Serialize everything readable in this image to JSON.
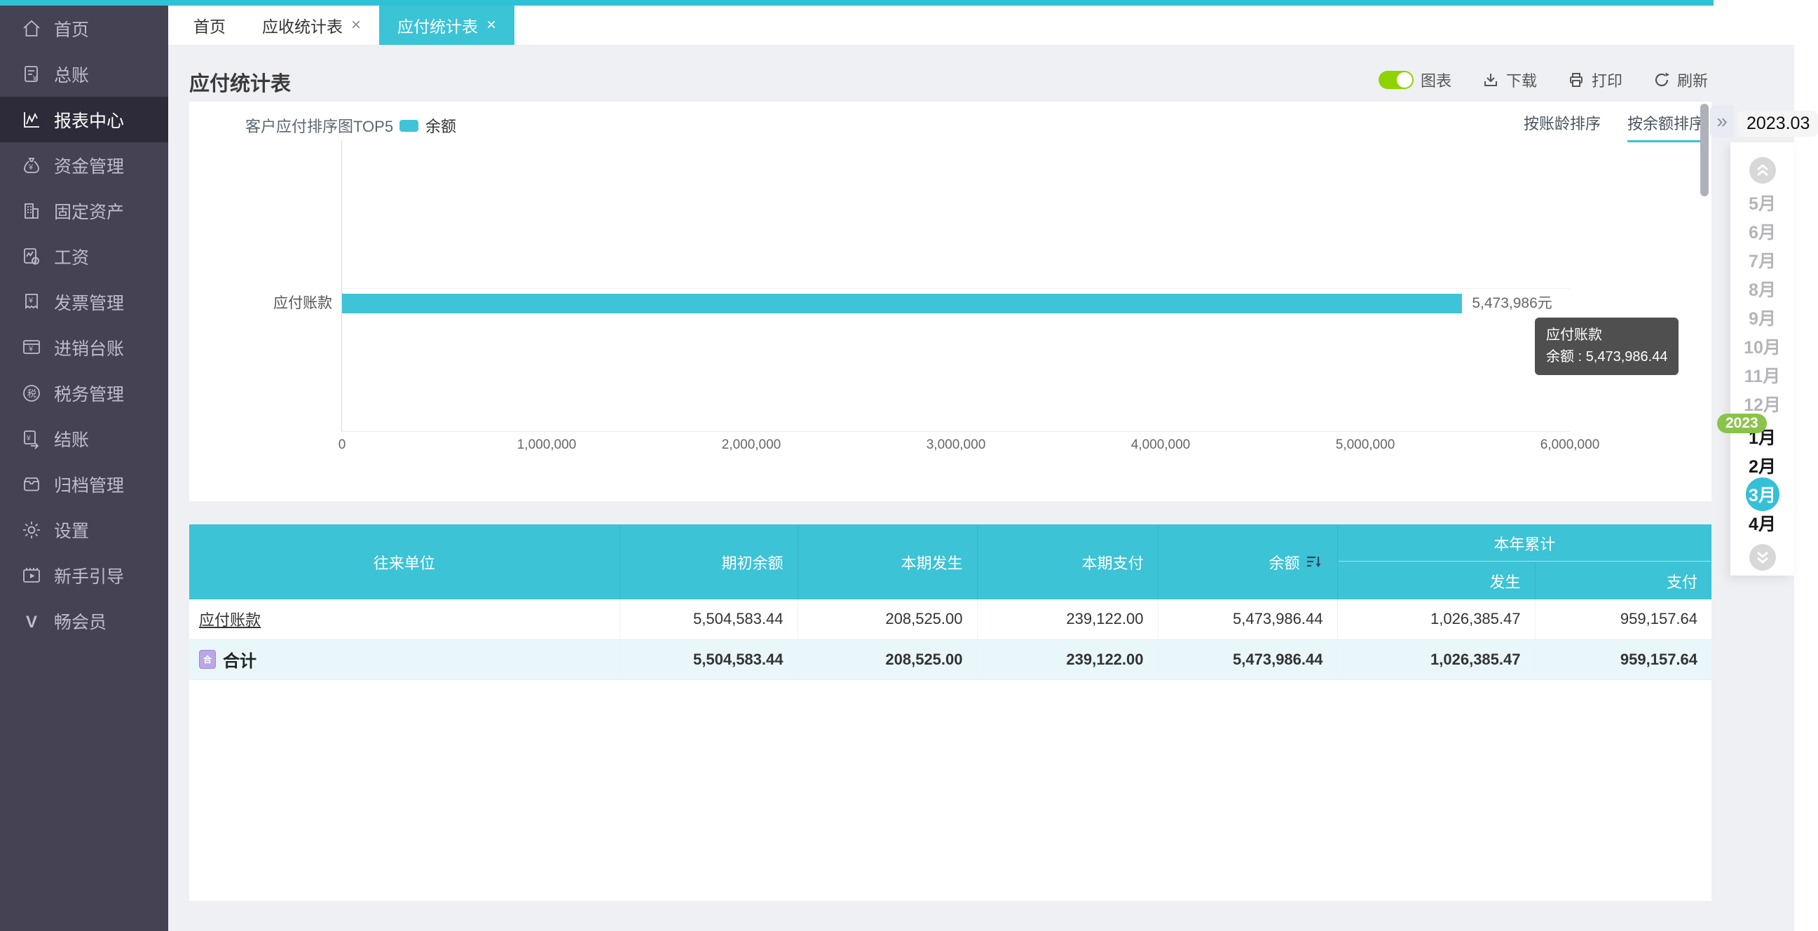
{
  "app": {
    "window": {
      "close_label": "×"
    },
    "tabs": [
      {
        "label": "首页",
        "closable": false,
        "active": false
      },
      {
        "label": "应收统计表",
        "closable": true,
        "active": false
      },
      {
        "label": "应付统计表",
        "closable": true,
        "active": true
      }
    ]
  },
  "sidebar": {
    "items": [
      {
        "label": "首页",
        "icon": "home",
        "active": false
      },
      {
        "label": "总账",
        "icon": "ledger",
        "active": false
      },
      {
        "label": "报表中心",
        "icon": "report",
        "active": true
      },
      {
        "label": "资金管理",
        "icon": "fund",
        "active": false
      },
      {
        "label": "固定资产",
        "icon": "asset",
        "active": false
      },
      {
        "label": "工资",
        "icon": "salary",
        "active": false
      },
      {
        "label": "发票管理",
        "icon": "invoice",
        "active": false
      },
      {
        "label": "进销台账",
        "icon": "inout",
        "active": false
      },
      {
        "label": "税务管理",
        "icon": "tax",
        "active": false
      },
      {
        "label": "结账",
        "icon": "closing",
        "active": false
      },
      {
        "label": "归档管理",
        "icon": "archive",
        "active": false
      },
      {
        "label": "设置",
        "icon": "settings",
        "active": false
      },
      {
        "label": "新手引导",
        "icon": "guide",
        "active": false
      },
      {
        "label": "畅会员",
        "icon": "member",
        "active": false
      }
    ]
  },
  "header": {
    "title": "应付统计表",
    "toolbar": {
      "chart_toggle_label": "图表",
      "chart_toggle_on": true,
      "download_label": "下载",
      "print_label": "打印",
      "refresh_label": "刷新"
    }
  },
  "chart_card": {
    "sort_by_aging": "按账龄排序",
    "sort_by_balance": "按余额排序",
    "active_sort": "按余额排序"
  },
  "chart_data": {
    "type": "bar",
    "orientation": "horizontal",
    "title": "客户应付排序图TOP5",
    "legend": [
      "余额"
    ],
    "legend_position": "top",
    "categories": [
      "应付账款"
    ],
    "values": [
      5473986.44
    ],
    "value_label": "5,473,986元",
    "xlim": [
      0,
      6000000
    ],
    "x_ticks": [
      "0",
      "1,000,000",
      "2,000,000",
      "3,000,000",
      "4,000,000",
      "5,000,000",
      "6,000,000"
    ],
    "grid": false,
    "bar_color": "#3ec4d6",
    "tooltip": {
      "title": "应付账款",
      "line": "余额 : 5,473,986.44"
    }
  },
  "table": {
    "header": {
      "col_unit": "往来单位",
      "col_opening": "期初余额",
      "col_current_incurred": "本期发生",
      "col_current_paid": "本期支付",
      "col_balance": "余额",
      "col_ytd": "本年累计",
      "col_ytd_incurred": "发生",
      "col_ytd_paid": "支付"
    },
    "rows": [
      {
        "name": "应付账款",
        "values": [
          "5,504,583.44",
          "208,525.00",
          "239,122.00",
          "5,473,986.44",
          "1,026,385.47",
          "959,157.64"
        ]
      }
    ],
    "total_row": {
      "label": "合计",
      "icon_glyph": "合",
      "values": [
        "5,504,583.44",
        "208,525.00",
        "239,122.00",
        "5,473,986.44",
        "1,026,385.47",
        "959,157.64"
      ]
    }
  },
  "month_panel": {
    "current_period": "2023.03",
    "collapse_glyph": "»",
    "year_badge": "2023",
    "months": [
      {
        "label": "5月",
        "state": "muted"
      },
      {
        "label": "6月",
        "state": "muted"
      },
      {
        "label": "7月",
        "state": "muted"
      },
      {
        "label": "8月",
        "state": "muted"
      },
      {
        "label": "9月",
        "state": "muted"
      },
      {
        "label": "10月",
        "state": "muted"
      },
      {
        "label": "11月",
        "state": "muted"
      },
      {
        "label": "12月",
        "state": "muted"
      },
      {
        "label": "1月",
        "state": "normal",
        "first_of_year": true
      },
      {
        "label": "2月",
        "state": "normal"
      },
      {
        "label": "3月",
        "state": "active"
      },
      {
        "label": "4月",
        "state": "normal"
      }
    ]
  },
  "colors": {
    "accent": "#3bc3d6",
    "toggle_green": "#8ed300",
    "sidebar_bg": "#454253",
    "sidebar_active_bg": "#2d2b39",
    "total_row_bg": "#e9f7fb",
    "year_badge_green": "#8bc34a"
  }
}
